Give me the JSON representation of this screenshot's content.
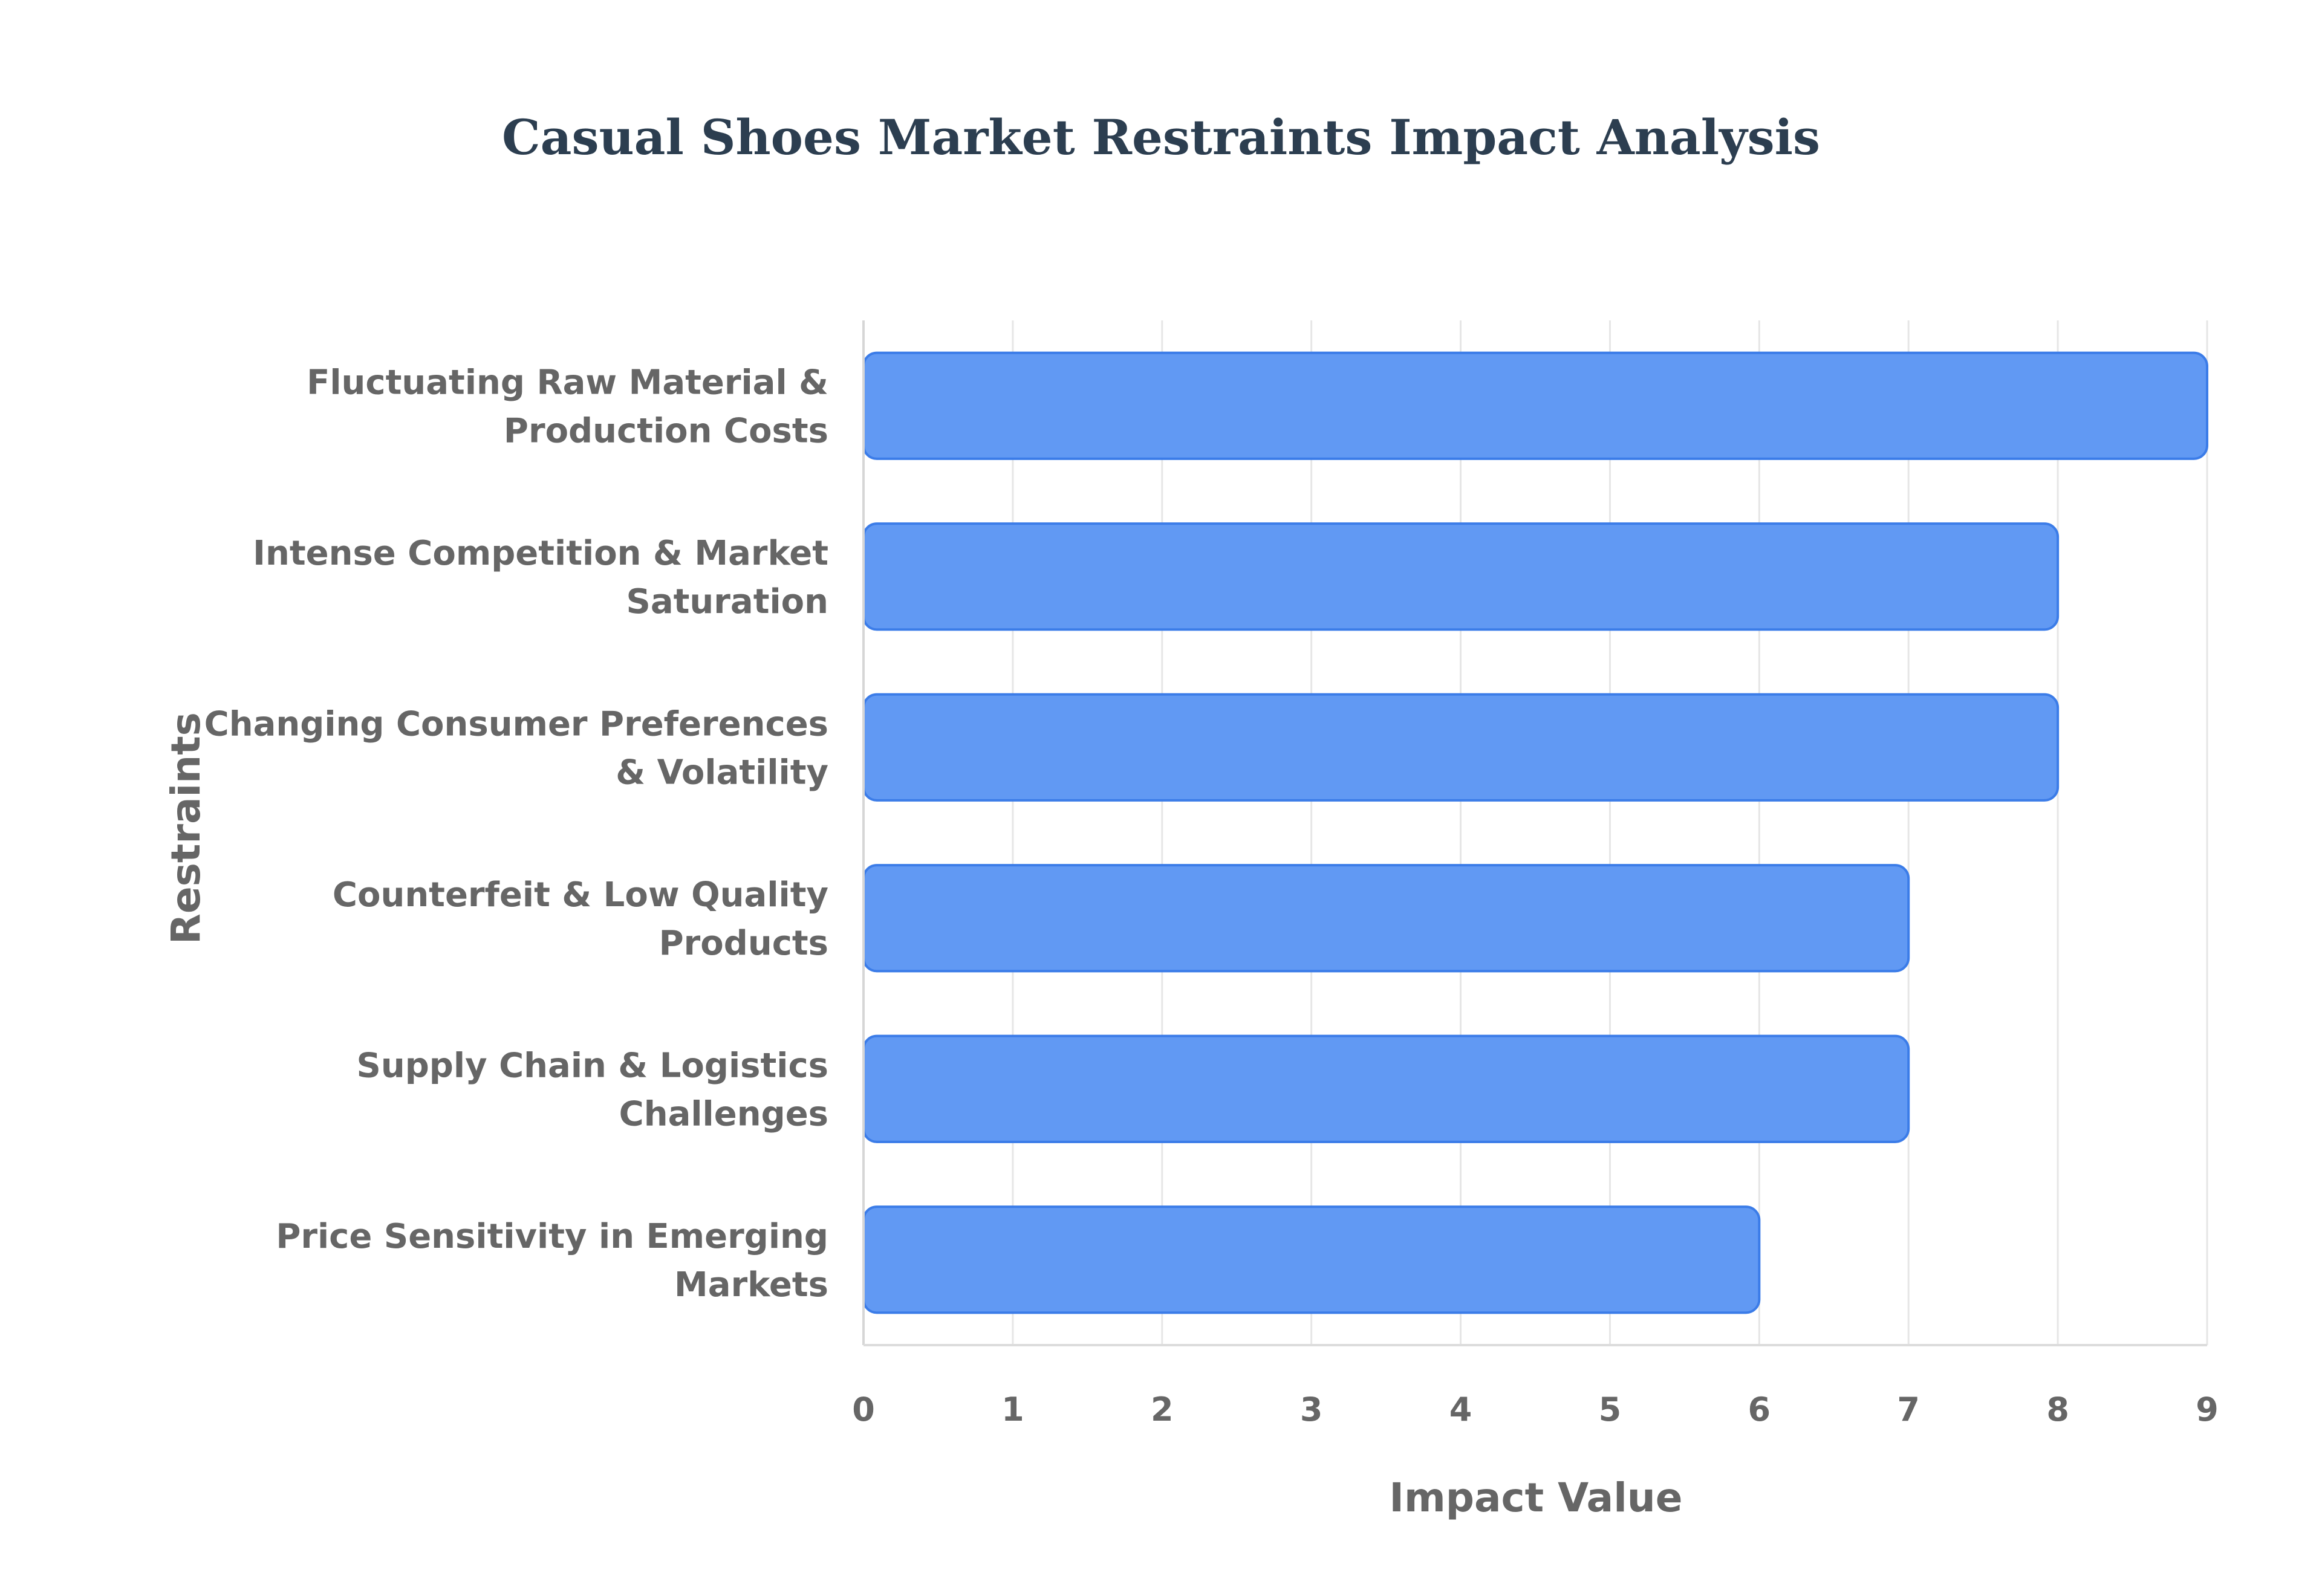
{
  "chart_data": {
    "type": "bar",
    "orientation": "horizontal",
    "title": "Casual Shoes Market Restraints Impact Analysis",
    "xlabel": "Impact Value",
    "ylabel": "Restraints",
    "xlim": [
      0,
      9
    ],
    "xticks": [
      "0",
      "1",
      "2",
      "3",
      "4",
      "5",
      "6",
      "7",
      "8",
      "9"
    ],
    "categories": [
      [
        "Fluctuating Raw Material &",
        "Production Costs"
      ],
      [
        "Intense Competition & Market",
        "Saturation"
      ],
      [
        "Changing Consumer Preferences",
        "& Volatility"
      ],
      [
        "Counterfeit & Low Quality",
        "Products"
      ],
      [
        "Supply Chain & Logistics",
        "Challenges"
      ],
      [
        "Price Sensitivity in Emerging",
        "Markets"
      ]
    ],
    "values": [
      9,
      8,
      8,
      7,
      7,
      6
    ],
    "grid": true,
    "legend": false,
    "colors": {
      "bar_fill": "#6199f3",
      "bar_stroke": "#3b7ce8",
      "grid": "#e6e6e6",
      "text": "#666666",
      "title": "#2c3e50"
    }
  }
}
